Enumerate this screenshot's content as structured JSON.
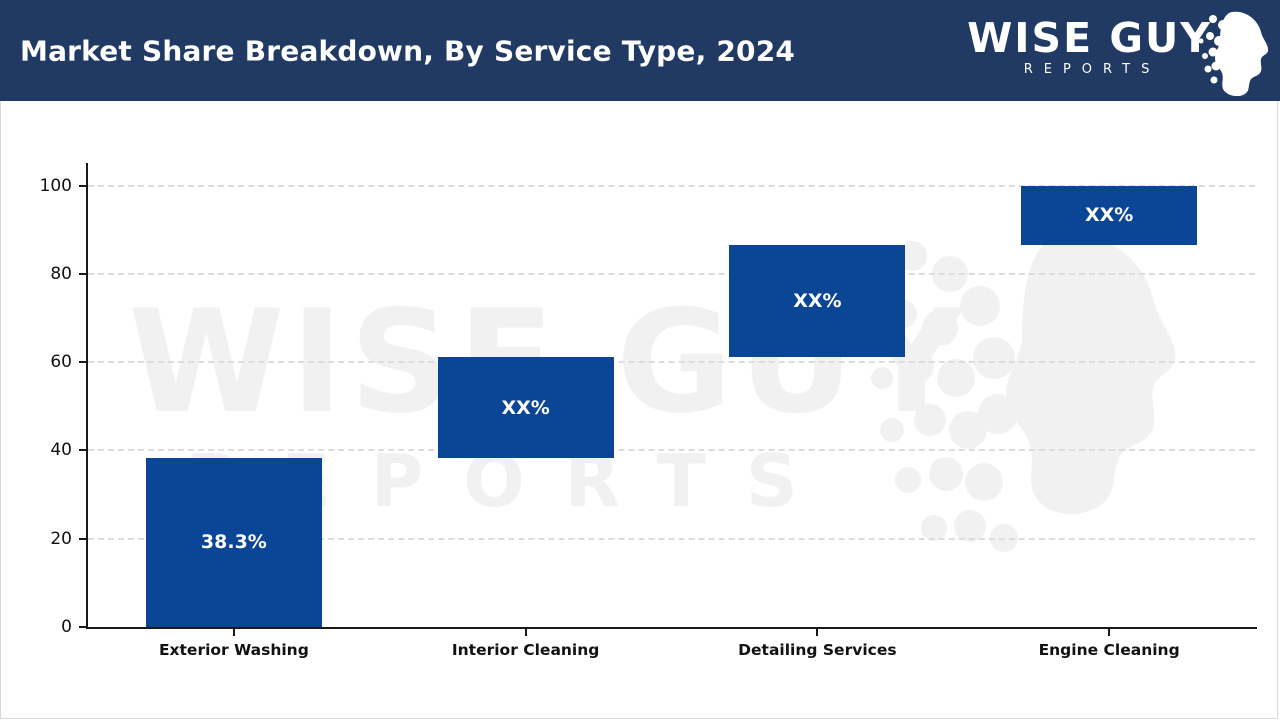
{
  "header": {
    "title": "Market Share Breakdown, By Service Type, 2024",
    "logo": {
      "wordmark": "WISE GUY",
      "subtext": "REPORTS"
    }
  },
  "watermark": {
    "wordmark": "WISE GUY",
    "subtext": "REPORTS"
  },
  "colors": {
    "header_bg": "#213a64",
    "bar_fill": "#0b4696",
    "bar_label": "#ffffff",
    "gridline": "#dcdcdc",
    "axis": "#1a1a1a",
    "tick_label": "#111111",
    "watermark": "#f1f1f1",
    "panel_border": "#d9d9d9",
    "background": "#ffffff"
  },
  "chart_data": {
    "type": "bar",
    "subtype": "waterfall",
    "title": "Market Share Breakdown, By Service Type, 2024",
    "categories": [
      "Exterior Washing",
      "Interior Cleaning",
      "Detailing Services",
      "Engine Cleaning"
    ],
    "series": [
      {
        "name": "Market share (%)",
        "segments": [
          {
            "category": "Exterior Washing",
            "from": 0,
            "to": 38.3,
            "label": "38.3%"
          },
          {
            "category": "Interior Cleaning",
            "from": 38.3,
            "to": 61.1,
            "label": "XX%"
          },
          {
            "category": "Detailing Services",
            "from": 61.1,
            "to": 86.5,
            "label": "XX%"
          },
          {
            "category": "Engine Cleaning",
            "from": 86.5,
            "to": 100,
            "label": "XX%"
          }
        ]
      }
    ],
    "xlabel": "",
    "ylabel": "",
    "ylim": [
      0,
      100
    ],
    "yticks": [
      0,
      20,
      40,
      60,
      80,
      100
    ],
    "grid": true,
    "legend": false
  }
}
